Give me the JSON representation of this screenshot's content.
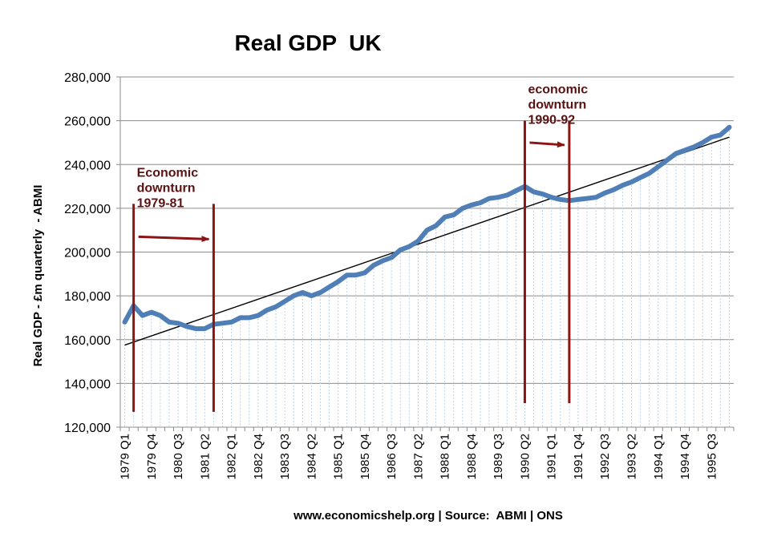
{
  "chart_data": {
    "type": "area",
    "title": "Real GDP  UK",
    "ylabel": "Real GDP - £m quarterly  - ABMI",
    "xlabel": "www.economicshelp.org | Source:  ABMI | ONS",
    "ylim": [
      120000,
      280000
    ],
    "yticks": [
      120000,
      140000,
      160000,
      180000,
      200000,
      220000,
      240000,
      260000,
      280000
    ],
    "ytick_labels": [
      "120,000",
      "140,000",
      "160,000",
      "180,000",
      "200,000",
      "220,000",
      "240,000",
      "260,000",
      "280,000"
    ],
    "xtick_labels": [
      "1979 Q1",
      "1979 Q4",
      "1980 Q3",
      "1981 Q2",
      "1982 Q1",
      "1982 Q4",
      "1983 Q3",
      "1984 Q2",
      "1985 Q1",
      "1985 Q4",
      "1986 Q3",
      "1987 Q2",
      "1988 Q1",
      "1988 Q4",
      "1989 Q3",
      "1990 Q2",
      "1991 Q1",
      "1991 Q4",
      "1992 Q3",
      "1993 Q2",
      "1994 Q1",
      "1994 Q4",
      "1995 Q3"
    ],
    "xtick_every": 3,
    "grid": true,
    "legend": false,
    "series": [
      {
        "values": [
          168000,
          175500,
          171000,
          172500,
          171000,
          168000,
          167500,
          166000,
          165000,
          165000,
          167000,
          167500,
          168000,
          170000,
          170000,
          171000,
          173500,
          175000,
          177500,
          180000,
          181500,
          180000,
          181500,
          184000,
          186500,
          189500,
          189500,
          190500,
          194000,
          196000,
          197500,
          201000,
          202500,
          205000,
          210000,
          212000,
          216000,
          217000,
          220000,
          221500,
          222500,
          224500,
          225000,
          226000,
          228000,
          230000,
          227500,
          226500,
          225000,
          224000,
          223500,
          224000,
          224500,
          225000,
          227000,
          228500,
          230500,
          232000,
          234000,
          236000,
          239000,
          242000,
          245000,
          246500,
          248000,
          250000,
          252500,
          253500,
          257000
        ]
      }
    ],
    "trendline": {
      "start": 157500,
      "end": 252500
    },
    "annotations": [
      {
        "text_lines": [
          "Economic",
          "downturn",
          "1979-81"
        ],
        "start_index": 1,
        "end_index": 10,
        "y_top": 222000,
        "y_bottom": 127000,
        "arrow_y": 207000
      },
      {
        "text_lines": [
          "economic",
          "downturn",
          "1990-92"
        ],
        "start_index": 45,
        "end_index": 50,
        "y_top": 260000,
        "y_bottom": 131000,
        "arrow_y": 250000
      }
    ],
    "colors": {
      "line": "#4f7fb6",
      "fill_lines": "#b8d2ea",
      "grid": "#8c8c8c",
      "trend": "#000000",
      "marker": "#8b1414",
      "annotation_text": "#5a1212"
    }
  }
}
